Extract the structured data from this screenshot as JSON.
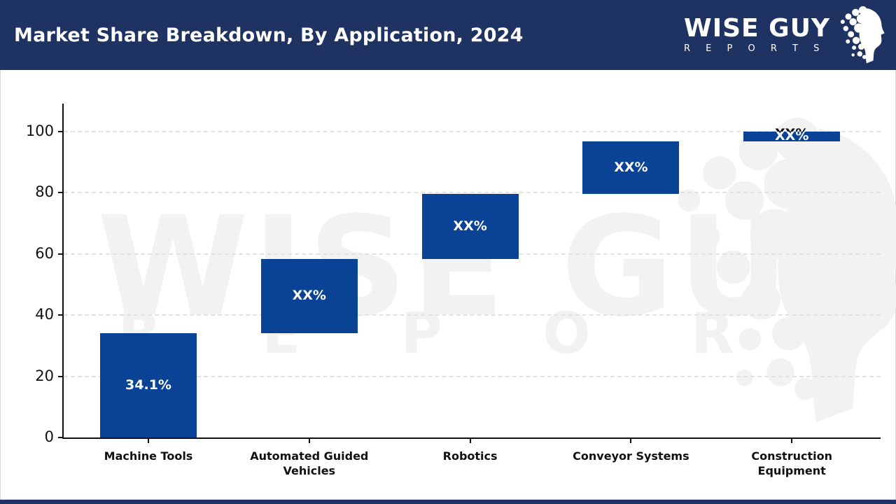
{
  "header": {
    "title": "Market Share Breakdown, By Application, 2024",
    "logo": {
      "name_top": "WISE GUY",
      "name_bottom": "R E P O R T S"
    }
  },
  "watermark": {
    "text_top": "WISE GUY",
    "text_bottom": "R E P O R T S"
  },
  "chart_data": {
    "type": "bar",
    "subtype": "waterfall",
    "title": "Market Share Breakdown, By Application, 2024",
    "categories": [
      "Machine Tools",
      "Automated Guided\nVehicles",
      "Robotics",
      "Conveyor Systems",
      "Construction\nEquipment"
    ],
    "bars": [
      {
        "category": "Machine Tools",
        "start": 0,
        "end": 34.1,
        "label": "34.1%"
      },
      {
        "category": "Automated Guided Vehicles",
        "start": 34.1,
        "end": 58.4,
        "label": "XX%"
      },
      {
        "category": "Robotics",
        "start": 58.4,
        "end": 79.6,
        "label": "XX%"
      },
      {
        "category": "Conveyor Systems",
        "start": 79.6,
        "end": 96.6,
        "label": "XX%"
      },
      {
        "category": "Construction Equipment",
        "start": 96.6,
        "end": 100,
        "label": "XX%"
      }
    ],
    "y_ticks": [
      0,
      20,
      40,
      60,
      80,
      100
    ],
    "ylim": [
      0,
      108
    ],
    "grid": "horizontal-dashed",
    "legend": "none",
    "colors": {
      "bar": "#0a4296",
      "bar_label": "#ffffff",
      "header_bg": "#1e3361",
      "axis": "#111111",
      "gridline": "#e2e2e2",
      "watermark": "#f2f2f2"
    }
  }
}
